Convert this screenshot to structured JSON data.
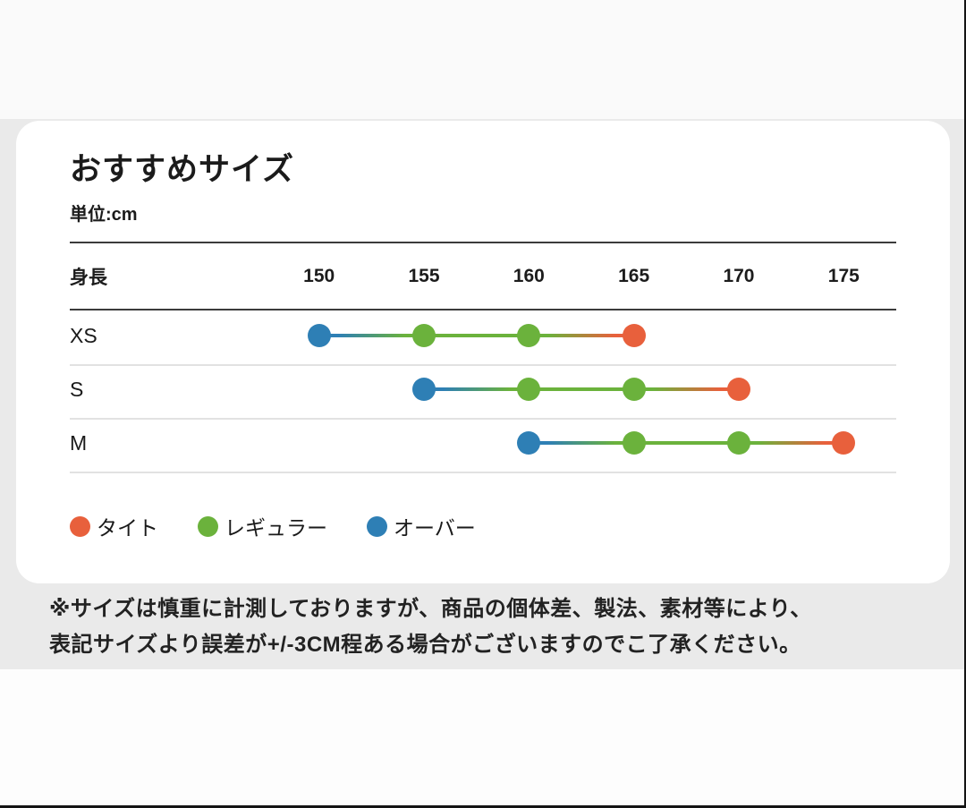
{
  "card": {
    "title": "おすすめサイズ",
    "unit_label": "単位:cm"
  },
  "chart_data": {
    "type": "scatter",
    "title": "おすすめサイズ",
    "unit": "cm",
    "x_label": "身長",
    "x_ticks": [
      "150",
      "155",
      "160",
      "165",
      "170",
      "175"
    ],
    "x_range": [
      150,
      175
    ],
    "grid": "horizontal-row-dividers",
    "legend_position": "bottom",
    "rows": [
      {
        "label": "XS",
        "points": [
          {
            "x": 150,
            "fit": "over"
          },
          {
            "x": 155,
            "fit": "regular"
          },
          {
            "x": 160,
            "fit": "regular"
          },
          {
            "x": 165,
            "fit": "tight"
          }
        ]
      },
      {
        "label": "S",
        "points": [
          {
            "x": 155,
            "fit": "over"
          },
          {
            "x": 160,
            "fit": "regular"
          },
          {
            "x": 165,
            "fit": "regular"
          },
          {
            "x": 170,
            "fit": "tight"
          }
        ]
      },
      {
        "label": "M",
        "points": [
          {
            "x": 160,
            "fit": "over"
          },
          {
            "x": 165,
            "fit": "regular"
          },
          {
            "x": 170,
            "fit": "regular"
          },
          {
            "x": 175,
            "fit": "tight"
          }
        ]
      }
    ],
    "legend": [
      {
        "key": "tight",
        "label": "タイト",
        "color": "#E8603C"
      },
      {
        "key": "regular",
        "label": "レギュラー",
        "color": "#6BB23C"
      },
      {
        "key": "over",
        "label": "オーバー",
        "color": "#2E7FB5"
      }
    ]
  },
  "note": {
    "line1": "※サイズは慎重に計測しておりますが、商品の個体差、製法、素材等により、",
    "line2": "表記サイズより誤差が+/-3CM程ある場合がございますのでこ了承ください。"
  }
}
